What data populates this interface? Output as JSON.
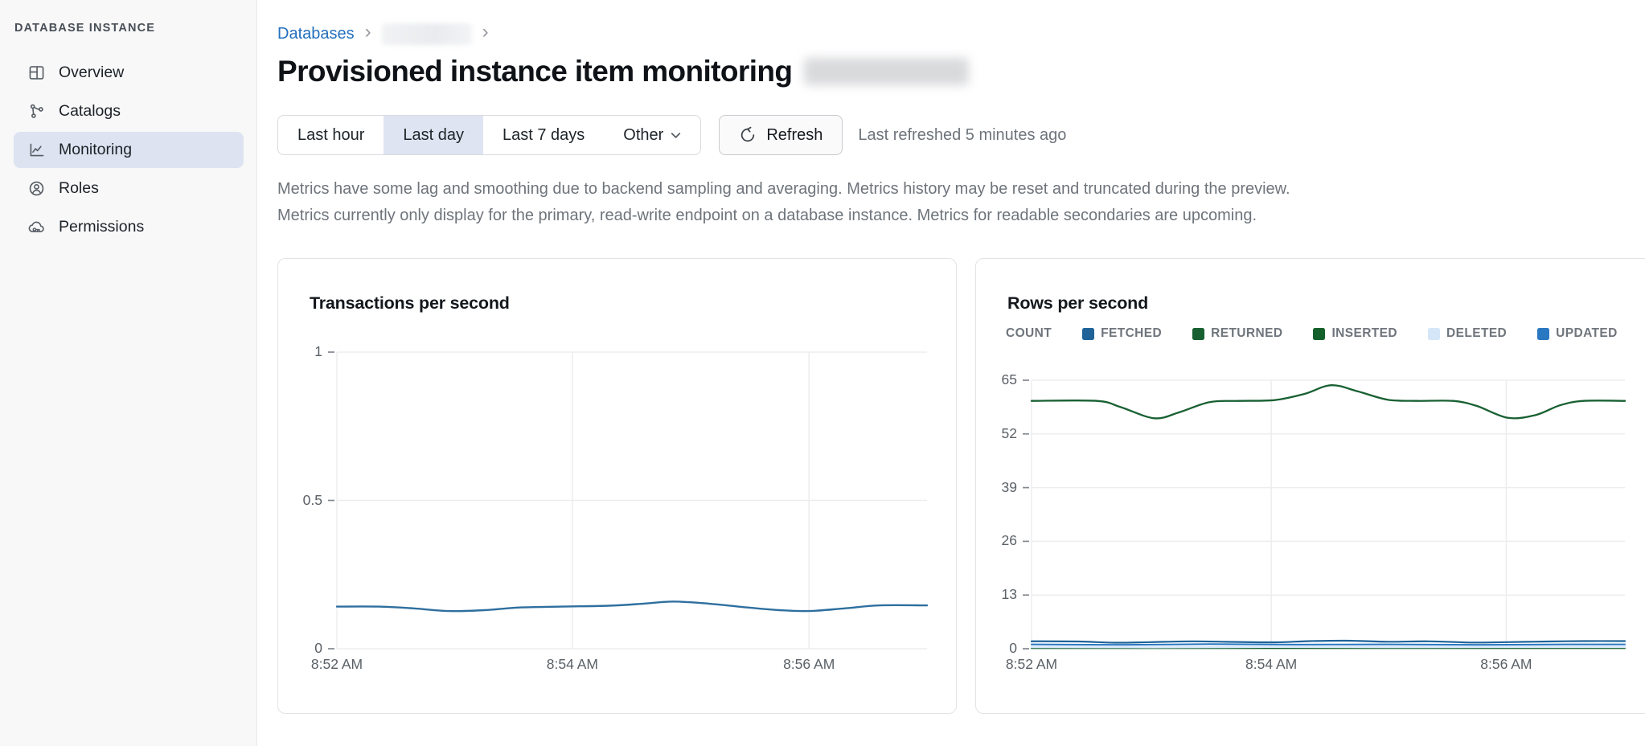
{
  "sidebar": {
    "header": "DATABASE INSTANCE",
    "items": [
      {
        "label": "Overview",
        "icon": "grid-icon",
        "selected": false
      },
      {
        "label": "Catalogs",
        "icon": "catalog-icon",
        "selected": false
      },
      {
        "label": "Monitoring",
        "icon": "chart-icon",
        "selected": true
      },
      {
        "label": "Roles",
        "icon": "user-icon",
        "selected": false
      },
      {
        "label": "Permissions",
        "icon": "cloud-key-icon",
        "selected": false
      }
    ]
  },
  "breadcrumb": {
    "separator": "›",
    "items": [
      {
        "label": "Databases",
        "link": true
      },
      {
        "redacted": true
      }
    ]
  },
  "page": {
    "title": "Provisioned instance item monitoring"
  },
  "time_range": {
    "selected": "Last day",
    "options": [
      {
        "label": "Last hour"
      },
      {
        "label": "Last day"
      },
      {
        "label": "Last 7 days"
      },
      {
        "label": "Other",
        "chevron": true
      }
    ]
  },
  "refresh": {
    "label": "Refresh",
    "status": "Last refreshed 5 minutes ago"
  },
  "notices": [
    "Metrics have some lag and smoothing due to backend sampling and averaging. Metrics history may be reset and truncated during the preview.",
    "Metrics currently only display for the primary, read-write endpoint on a database instance. Metrics for readable secondaries are upcoming."
  ],
  "colors": {
    "accent_link": "#2470bd",
    "sidebar_selected_bg": "#dde3f0",
    "tab_selected_bg": "#dee4f1",
    "transactions_line": "#2e6f9f",
    "fetched": "#1f6399",
    "returned": "#186032",
    "inserted": "#14602a",
    "deleted": "#d5e6f8",
    "updated": "#2a78c2"
  },
  "chart_data": [
    {
      "type": "line",
      "title": "Transactions per second",
      "grid": true,
      "ylim": [
        0,
        1
      ],
      "yticks": [
        "1",
        "0.5",
        "0"
      ],
      "xticks": [
        {
          "label": "8:52 AM",
          "f": 0
        },
        {
          "label": "8:54 AM",
          "f": 0.399
        },
        {
          "label": "8:56 AM",
          "f": 0.8
        }
      ],
      "series": [
        {
          "name": "transactions",
          "color": "#2e6f9f",
          "width": 2.4,
          "points": [
            [
              0,
              0.142
            ],
            [
              0.07,
              0.142
            ],
            [
              0.13,
              0.136
            ],
            [
              0.19,
              0.127
            ],
            [
              0.25,
              0.13
            ],
            [
              0.31,
              0.139
            ],
            [
              0.38,
              0.142
            ],
            [
              0.46,
              0.145
            ],
            [
              0.52,
              0.152
            ],
            [
              0.57,
              0.159
            ],
            [
              0.63,
              0.152
            ],
            [
              0.69,
              0.14
            ],
            [
              0.75,
              0.13
            ],
            [
              0.8,
              0.127
            ],
            [
              0.86,
              0.136
            ],
            [
              0.92,
              0.146
            ],
            [
              1,
              0.146
            ]
          ]
        }
      ]
    },
    {
      "type": "line",
      "title": "Rows per second",
      "grid": true,
      "legend_position": "top",
      "ylim": [
        0,
        65
      ],
      "yticks": [
        "65",
        "52",
        "39",
        "26",
        "13",
        "0"
      ],
      "xticks": [
        {
          "label": "8:52 AM",
          "f": 0
        },
        {
          "label": "8:54 AM",
          "f": 0.404
        },
        {
          "label": "8:56 AM",
          "f": 0.8
        }
      ],
      "legend": [
        {
          "label": "COUNT",
          "color": null
        },
        {
          "label": "FETCHED",
          "color": "#1f6399"
        },
        {
          "label": "RETURNED",
          "color": "#186032"
        },
        {
          "label": "INSERTED",
          "color": "#14602a"
        },
        {
          "label": "DELETED",
          "color": "#d5e6f8"
        },
        {
          "label": "UPDATED",
          "color": "#2a78c2"
        }
      ],
      "series": [
        {
          "name": "inserted",
          "color": "#14602a",
          "width": 2,
          "points": [
            [
              0,
              0.15
            ],
            [
              0.5,
              0.15
            ],
            [
              1,
              0.15
            ]
          ]
        },
        {
          "name": "deleted",
          "color": "#d5e6f8",
          "width": 2.5,
          "points": [
            [
              0,
              0.4
            ],
            [
              0.2,
              0.35
            ],
            [
              0.4,
              0.42
            ],
            [
              0.6,
              0.38
            ],
            [
              0.8,
              0.4
            ],
            [
              1,
              0.4
            ]
          ]
        },
        {
          "name": "updated",
          "color": "#2a78c2",
          "width": 2,
          "points": [
            [
              0,
              1.05
            ],
            [
              0.15,
              0.95
            ],
            [
              0.3,
              1.1
            ],
            [
              0.45,
              1.0
            ],
            [
              0.6,
              1.05
            ],
            [
              0.75,
              0.95
            ],
            [
              0.9,
              1.05
            ],
            [
              1,
              1.05
            ]
          ]
        },
        {
          "name": "fetched",
          "color": "#1f6399",
          "width": 2.2,
          "points": [
            [
              0,
              1.8
            ],
            [
              0.08,
              1.75
            ],
            [
              0.14,
              1.45
            ],
            [
              0.2,
              1.6
            ],
            [
              0.27,
              1.8
            ],
            [
              0.34,
              1.65
            ],
            [
              0.41,
              1.55
            ],
            [
              0.47,
              1.85
            ],
            [
              0.53,
              1.95
            ],
            [
              0.6,
              1.7
            ],
            [
              0.67,
              1.8
            ],
            [
              0.74,
              1.5
            ],
            [
              0.8,
              1.6
            ],
            [
              0.87,
              1.75
            ],
            [
              0.93,
              1.85
            ],
            [
              1,
              1.85
            ]
          ]
        },
        {
          "name": "returned",
          "color": "#186032",
          "width": 2.3,
          "points": [
            [
              0,
              60
            ],
            [
              0.11,
              60
            ],
            [
              0.15,
              58.5
            ],
            [
              0.207,
              55.8
            ],
            [
              0.25,
              57.3
            ],
            [
              0.3,
              59.7
            ],
            [
              0.35,
              60
            ],
            [
              0.41,
              60.2
            ],
            [
              0.46,
              61.7
            ],
            [
              0.505,
              63.8
            ],
            [
              0.55,
              62.3
            ],
            [
              0.6,
              60.3
            ],
            [
              0.65,
              60
            ],
            [
              0.71,
              60
            ],
            [
              0.75,
              58.8
            ],
            [
              0.803,
              55.9
            ],
            [
              0.85,
              56.6
            ],
            [
              0.89,
              58.9
            ],
            [
              0.93,
              60
            ],
            [
              1,
              60
            ]
          ]
        }
      ]
    }
  ]
}
